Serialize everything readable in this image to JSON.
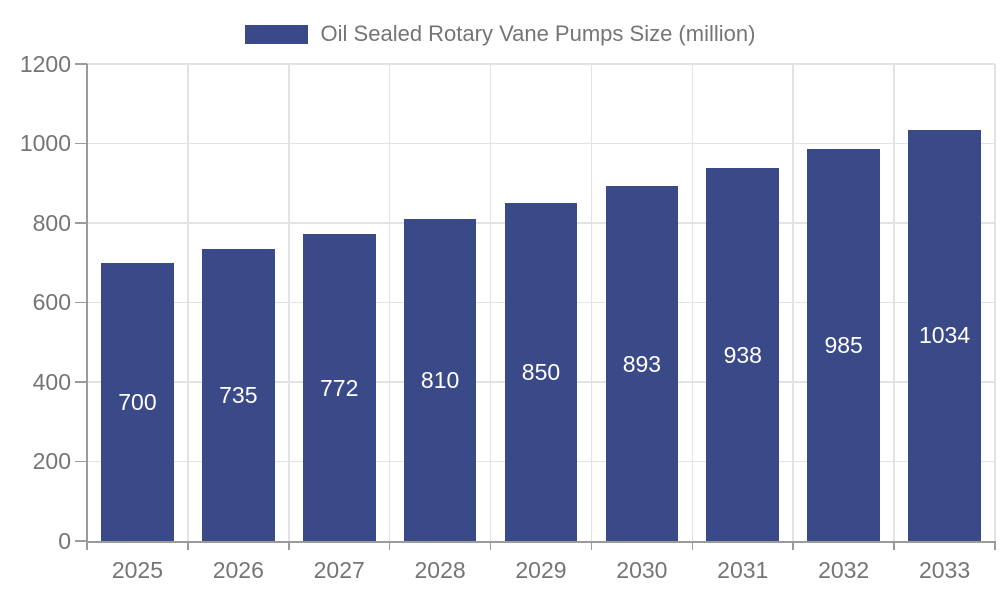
{
  "legend": {
    "label": "Oil Sealed Rotary Vane Pumps Size (million)"
  },
  "chart_data": {
    "type": "bar",
    "title": "",
    "categories": [
      "2025",
      "2026",
      "2027",
      "2028",
      "2029",
      "2030",
      "2031",
      "2032",
      "2033"
    ],
    "series": [
      {
        "name": "Oil Sealed Rotary Vane Pumps Size (million)",
        "values": [
          700,
          735,
          772,
          810,
          850,
          893,
          938,
          985,
          1034
        ]
      }
    ],
    "xlabel": "",
    "ylabel": "",
    "ylim": [
      0,
      1200
    ],
    "yticks": [
      0,
      200,
      400,
      600,
      800,
      1000,
      1200
    ],
    "grid": true,
    "legend_position": "top-center",
    "colors": {
      "bar": "#3A4988",
      "bar_label": "#FFFFFF",
      "axis_text": "#757575",
      "grid_line": "#E3E3E3",
      "axis_line": "#9B9B9B",
      "background": "#FFFFFF"
    }
  }
}
